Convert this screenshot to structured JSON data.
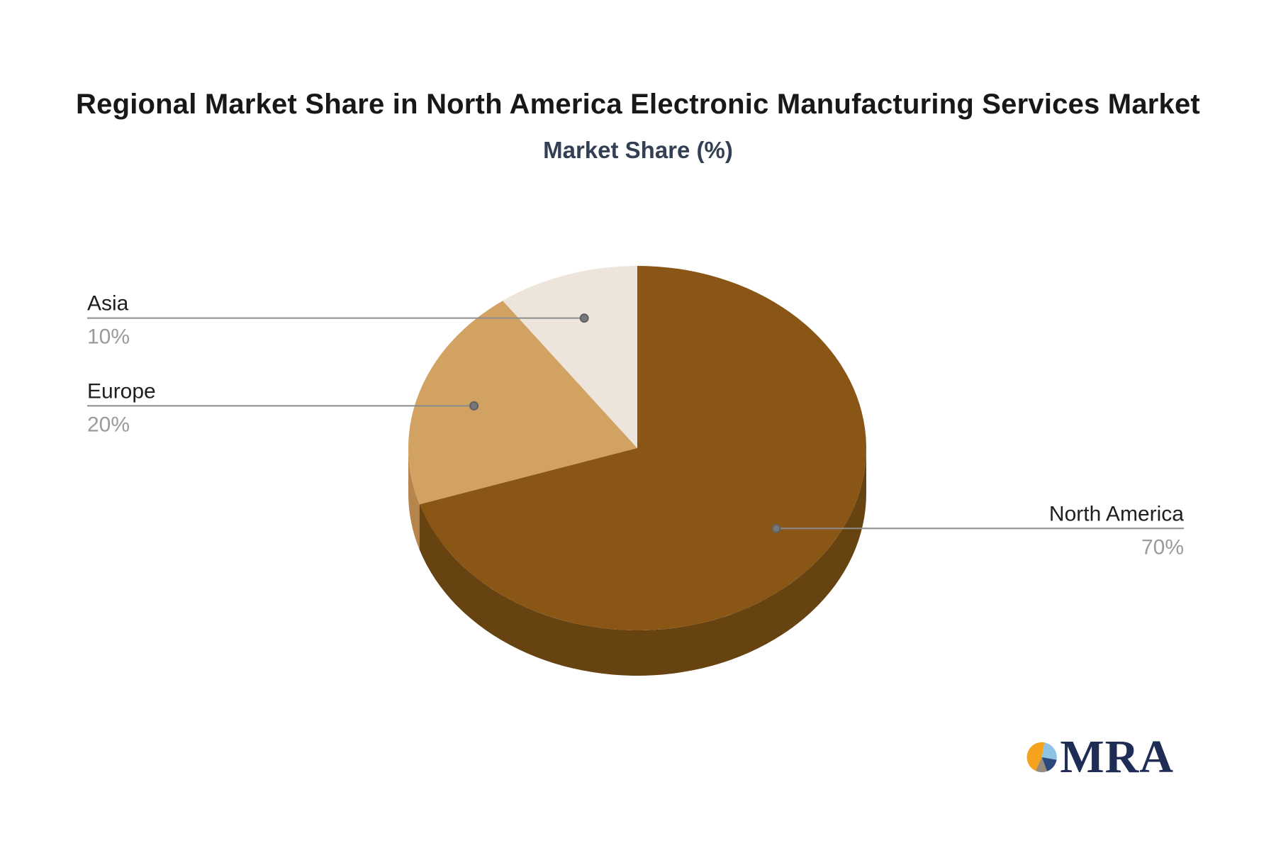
{
  "header": {
    "title": "Regional Market Share in North America Electronic Manufacturing Services Market",
    "subtitle": "Market Share (%)"
  },
  "chart_data": {
    "type": "pie",
    "title": "Regional Market Share in North America Electronic Manufacturing Services Market",
    "subtitle": "Market Share (%)",
    "unit": "%",
    "style": "3d-pie",
    "start_angle_deg": 0,
    "direction": "clockwise",
    "legend_position": "callout-labels",
    "slices": [
      {
        "label": "North America",
        "value": 70,
        "display": "70%",
        "color": "#8A5616",
        "side_color": "#684312",
        "label_side": "right"
      },
      {
        "label": "Europe",
        "value": 20,
        "display": "20%",
        "color": "#D2A263",
        "side_color": "#B5854B",
        "label_side": "left"
      },
      {
        "label": "Asia",
        "value": 10,
        "display": "10%",
        "color": "#EDE5DC",
        "side_color": "#D8CCBF",
        "label_side": "left"
      }
    ],
    "wall_color": "#744A12",
    "callout": {
      "line_color": "#8C8C8C",
      "dot_fill": "#76777A",
      "dot_stroke": "#606163",
      "label_color": "#1F1F1F",
      "value_color": "#9B9B9B"
    }
  },
  "logo": {
    "text": "MRA",
    "text_color": "#1F2C55",
    "icon_slices": [
      {
        "color": "#F6A21D",
        "from": 205,
        "to": 370
      },
      {
        "color": "#8FC3E4",
        "from": 10,
        "to": 100
      },
      {
        "color": "#2C4A7C",
        "from": 100,
        "to": 160
      },
      {
        "color": "#9A8C7C",
        "from": 160,
        "to": 205
      }
    ]
  }
}
